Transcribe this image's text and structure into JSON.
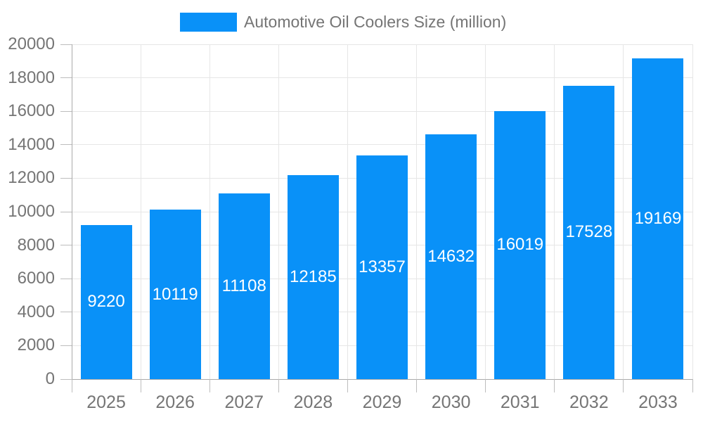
{
  "legend": {
    "label": "Automotive Oil Coolers Size (million)"
  },
  "chart_data": {
    "type": "bar",
    "title": "",
    "categories": [
      "2025",
      "2026",
      "2027",
      "2028",
      "2029",
      "2030",
      "2031",
      "2032",
      "2033"
    ],
    "values": [
      9220,
      10119,
      11108,
      12185,
      13357,
      14632,
      16019,
      17528,
      19169
    ],
    "series_name": "Automotive Oil Coolers Size (million)",
    "xlabel": "",
    "ylabel": "",
    "ylim": [
      0,
      20000
    ],
    "yticks": [
      0,
      2000,
      4000,
      6000,
      8000,
      10000,
      12000,
      14000,
      16000,
      18000,
      20000
    ],
    "grid": "on",
    "legend_position": "top",
    "value_labels": "inside-center",
    "colors": {
      "bar": "#0991f8",
      "value_label": "#ffffff",
      "axis_text": "#757575",
      "gridline": "#e6e6e6",
      "axis_line": "#aaaaaa",
      "tick": "#bdbdbd",
      "background": "#ffffff"
    }
  }
}
